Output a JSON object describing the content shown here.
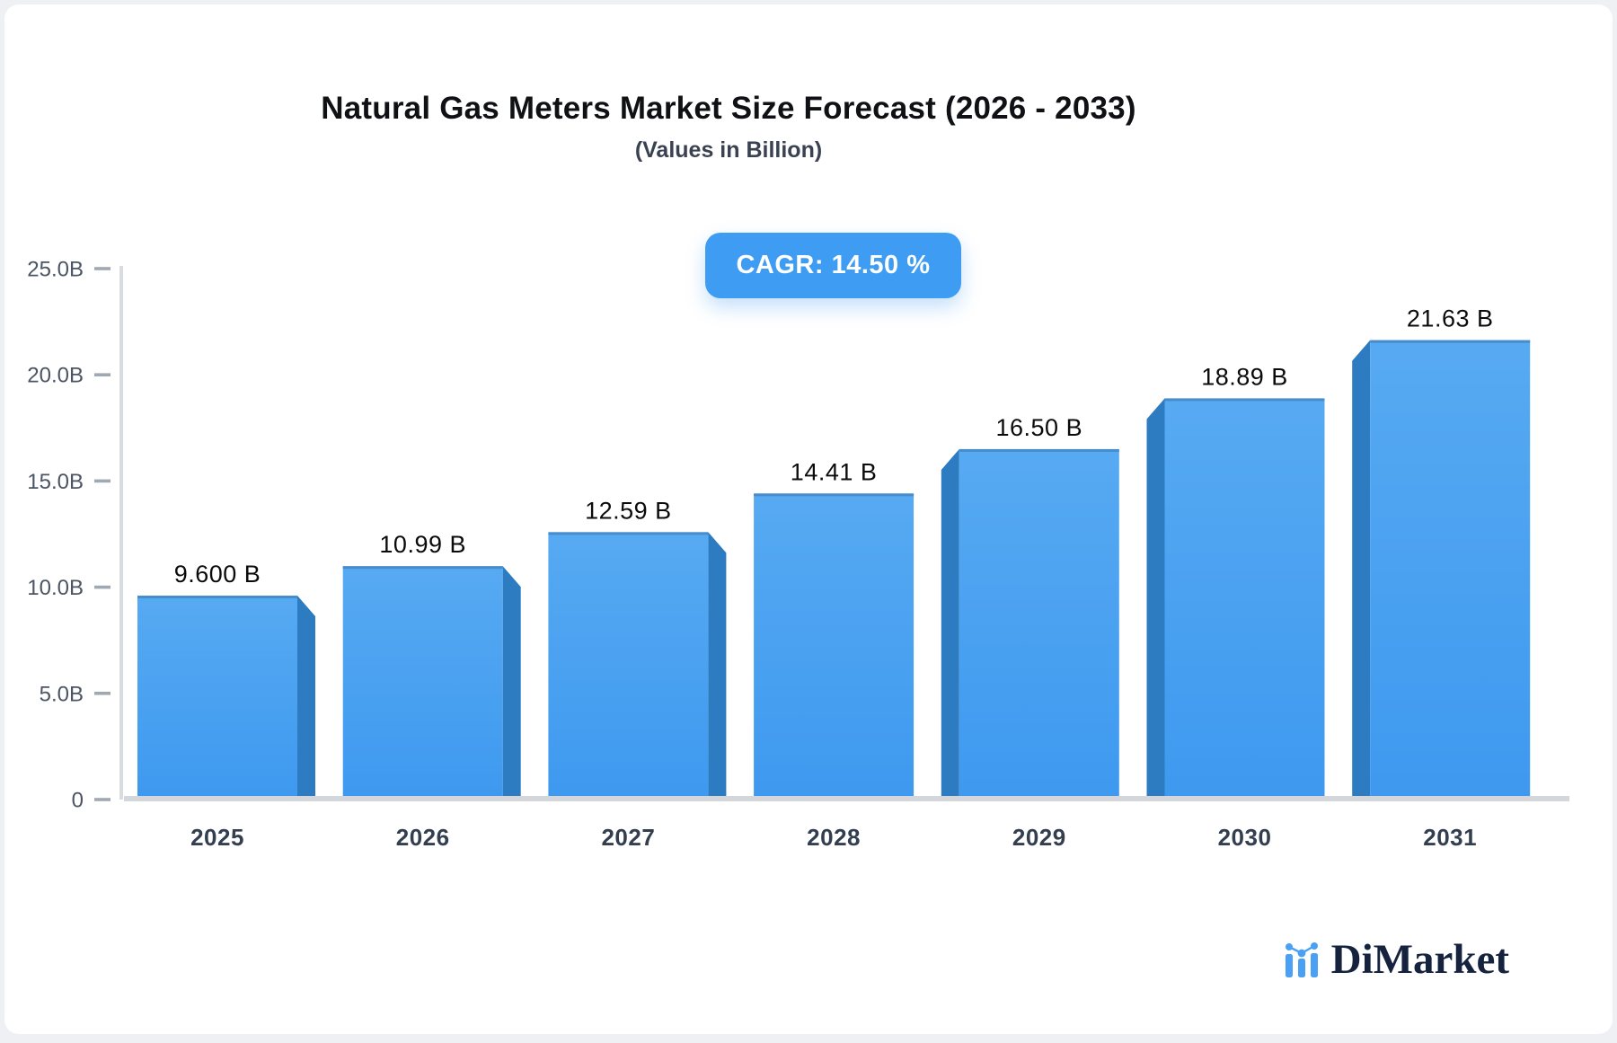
{
  "header": {
    "title": "Natural Gas Meters Market Size Forecast (2026 - 2033)",
    "subtitle": "(Values in Billion)"
  },
  "badge": {
    "label": "CAGR: 14.50 %",
    "background": "#3e9cf3",
    "text_color": "#ffffff"
  },
  "chart_data": {
    "type": "bar",
    "title": "Natural Gas Meters Market Size Forecast (2026 - 2033)",
    "subtitle": "(Values in Billion)",
    "categories": [
      "2025",
      "2026",
      "2027",
      "2028",
      "2029",
      "2030",
      "2031"
    ],
    "values": [
      9.6,
      10.99,
      12.59,
      14.41,
      16.5,
      18.89,
      21.63
    ],
    "value_labels": [
      "9.600 B",
      "10.99 B",
      "12.59 B",
      "14.41 B",
      "16.50 B",
      "18.89 B",
      "21.63 B"
    ],
    "xlabel": "",
    "ylabel": "",
    "ylim": [
      0,
      25
    ],
    "yticks": [
      0,
      5,
      10,
      15,
      20,
      25
    ],
    "ytick_labels": [
      "0",
      "5.0B",
      "10.0B",
      "15.0B",
      "20.0B",
      "25.0B"
    ],
    "grid": false,
    "legend": "none",
    "colors": {
      "bar_face_top": "#57aaf2",
      "bar_face_bottom": "#3e99ef",
      "bar_top_edge": "#478ccd",
      "bar_side": "#2d7cc1",
      "axis_line": "#d8dbdf",
      "baseline": "#d3d7db",
      "tick_dash": "#a0a8b1",
      "ytick_text": "#4b5563",
      "xtick_text": "#333e4f",
      "value_label": "#0b0b0b"
    }
  },
  "logo": {
    "text": "DiMarket",
    "text_color": "#15233e",
    "icon_color": "#4aa0f4"
  }
}
